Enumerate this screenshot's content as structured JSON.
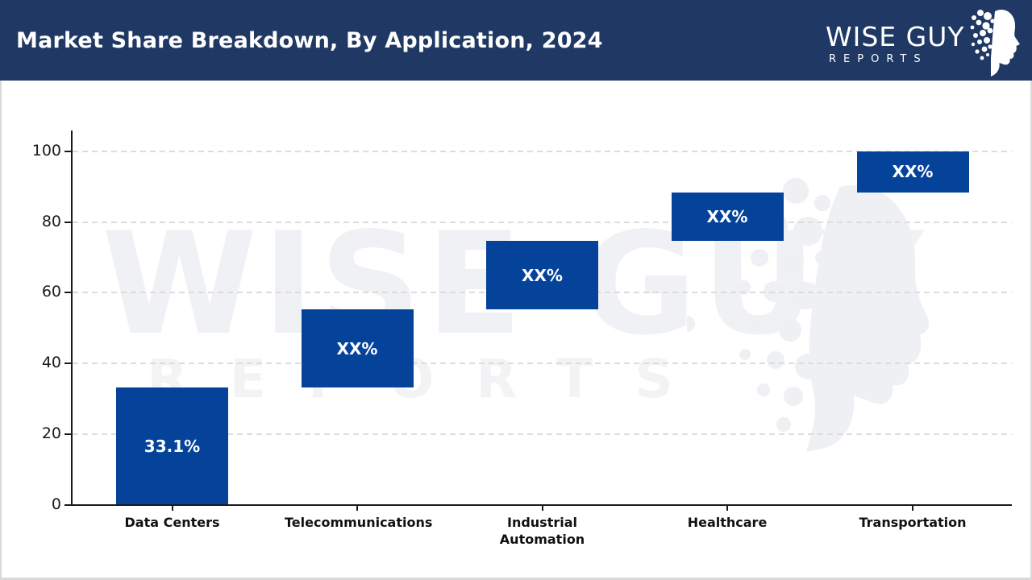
{
  "header": {
    "title": "Market Share Breakdown, By Application, 2024",
    "logo": {
      "line1": "WISE GUY",
      "line2": "REPORTS"
    }
  },
  "watermark": {
    "line1": "WISE GUY",
    "line2": "REPORTS"
  },
  "theme": {
    "header_bg": "#1f3864",
    "bar_color": "#05439b",
    "bar_label_color": "#ffffff",
    "grid_color": "#dcdcdc",
    "axis_color": "#1a1a1a",
    "watermark_color": "#f0f1f4"
  },
  "chart_data": {
    "type": "bar",
    "variant": "waterfall",
    "title": "Market Share Breakdown, By Application, 2024",
    "xlabel": "",
    "ylabel": "",
    "ylim": [
      0,
      100
    ],
    "yticks": [
      0,
      20,
      40,
      60,
      80,
      100
    ],
    "grid": "horizontal-dashed",
    "legend": "none",
    "categories": [
      "Data Centers",
      "Telecommunications",
      "Industrial Automation",
      "Healthcare",
      "Transportation"
    ],
    "segments": [
      {
        "category": "Data Centers",
        "start": 0,
        "end": 33.1,
        "label": "33.1%"
      },
      {
        "category": "Telecommunications",
        "start": 33.1,
        "end": 55.3,
        "label": "XX%"
      },
      {
        "category": "Industrial Automation",
        "start": 55.3,
        "end": 74.7,
        "label": "XX%"
      },
      {
        "category": "Healthcare",
        "start": 74.7,
        "end": 88.4,
        "label": "XX%"
      },
      {
        "category": "Transportation",
        "start": 88.4,
        "end": 100,
        "label": "XX%"
      }
    ]
  }
}
